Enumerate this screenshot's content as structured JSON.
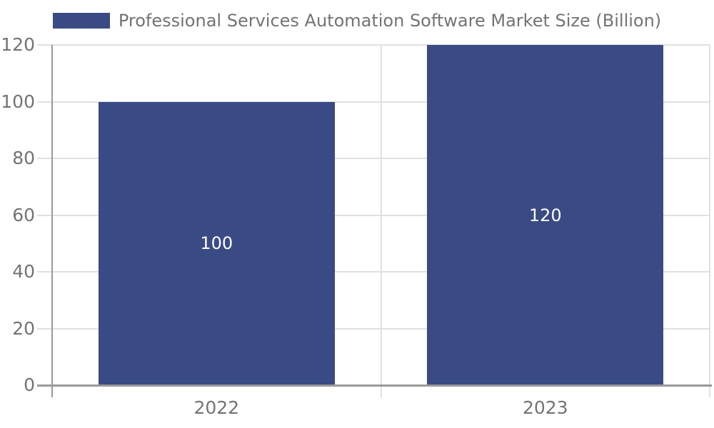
{
  "chart_data": {
    "type": "bar",
    "categories": [
      "2022",
      "2023"
    ],
    "values": [
      100,
      120
    ],
    "value_labels": [
      "100",
      "120"
    ],
    "series_name": "Professional Services Automation Software Market Size (Billion)",
    "legend_label": "Professional Services Automation Software Market Size (Billion)",
    "title": "",
    "xlabel": "",
    "ylabel": "",
    "ylim": [
      0,
      120
    ],
    "yticks": [
      0,
      20,
      40,
      60,
      80,
      100,
      120
    ],
    "grid": true,
    "legend_position": "top-center",
    "colors": {
      "bar": "#3A4A85",
      "grid": "#E0E0E0",
      "axis": "#999999",
      "label_text": "#737373",
      "value_label_text": "#FFFFFF",
      "background": "#FFFFFF"
    }
  }
}
